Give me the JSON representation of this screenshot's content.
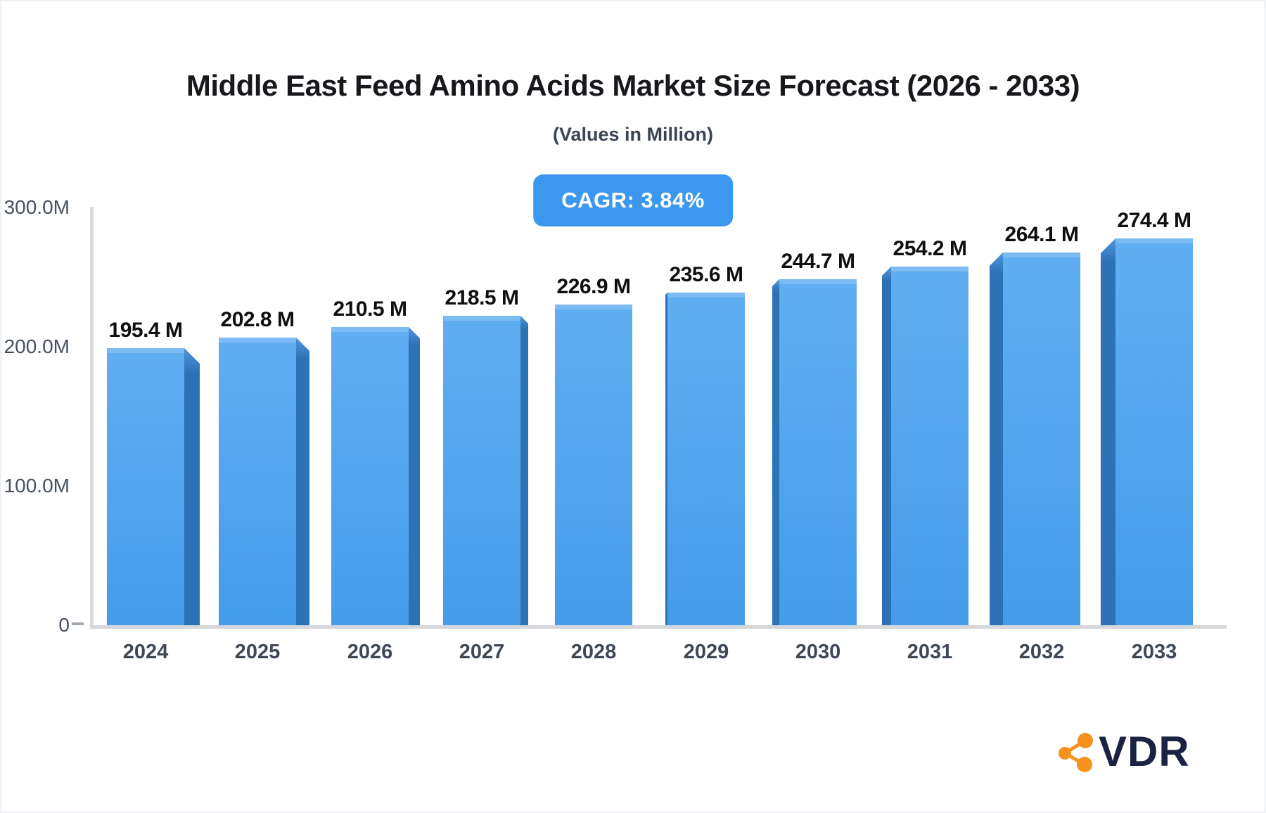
{
  "title": "Middle East Feed Amino Acids Market Size Forecast (2026 - 2033)",
  "subtitle": "(Values in Million)",
  "badge": {
    "label": "CAGR: 3.84%",
    "color": "#3b98ee"
  },
  "chart_data": {
    "type": "bar",
    "title": "Middle East Feed Amino Acids Market Size Forecast (2026 - 2033)",
    "subtitle": "(Values in Million)",
    "categories": [
      "2024",
      "2025",
      "2026",
      "2027",
      "2028",
      "2029",
      "2030",
      "2031",
      "2032",
      "2033"
    ],
    "values": [
      195.4,
      202.8,
      210.5,
      218.5,
      226.9,
      235.6,
      244.7,
      254.2,
      264.1,
      274.4
    ],
    "value_suffix": " M",
    "annotation": "CAGR: 3.84%",
    "xlabel": "",
    "ylabel": "",
    "ylim": [
      0,
      300
    ],
    "yticks": [
      {
        "label": "300.0M",
        "value": 300
      },
      {
        "label": "200.0M",
        "value": 200
      },
      {
        "label": "100.0M",
        "value": 100
      },
      {
        "label": "0",
        "value": 0
      }
    ],
    "grid": false,
    "legend": false,
    "bar_face_color": "#4fa3ec",
    "bar_face_gradient_top": "#61aef2",
    "bar_face_gradient_bottom": "#459ce9",
    "bar_top_strip_color": "#7dbbf4",
    "bar_side_color": "#2d72b5",
    "bar_side_bevel_color": "#4f95da",
    "axis_line_color": "#d9dbdf",
    "label_color": "#0e0f10",
    "tick_label_color": "#47505f",
    "year_label_color": "#3f4856"
  },
  "logo": {
    "text": "VDR",
    "icon": "share-network-icon",
    "icon_color": "#f5921e",
    "text_color": "#1c2342"
  }
}
